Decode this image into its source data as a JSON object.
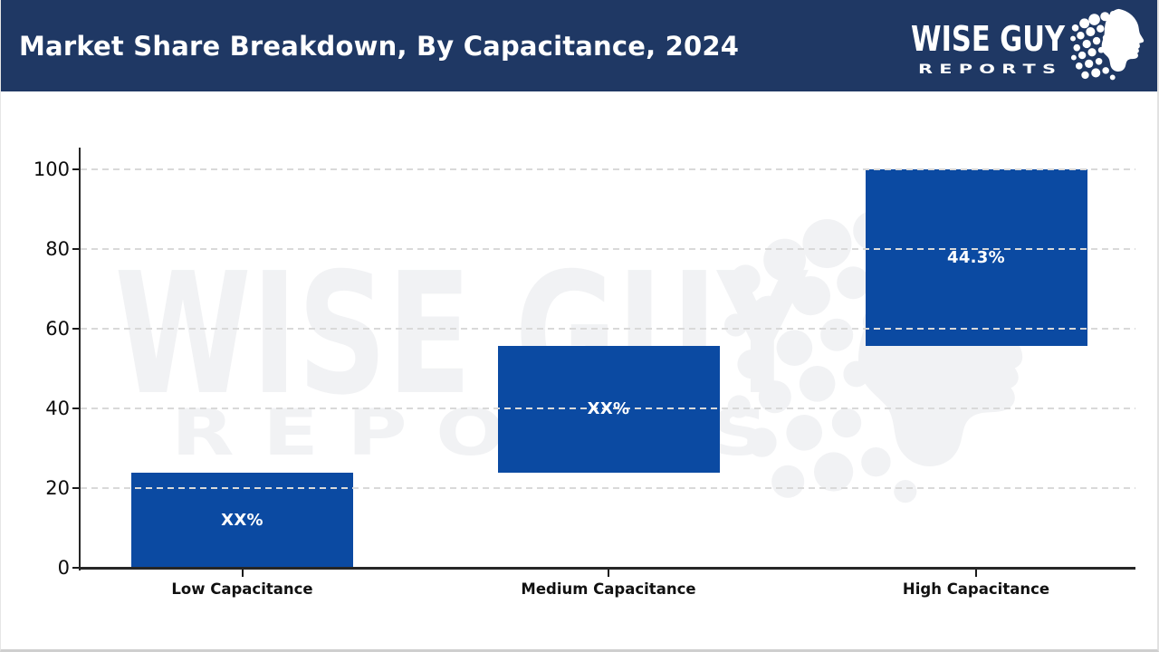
{
  "header": {
    "title": "Market Share Breakdown, By Capacitance, 2024",
    "logo": {
      "name": "WISE GUY",
      "sub": "R E P O R T S"
    }
  },
  "watermark": {
    "name": "WISE GUY",
    "sub": "R E P O R T S"
  },
  "chart_data": {
    "type": "bar",
    "variant": "waterfall-floating-bars",
    "title": "Market Share Breakdown, By Capacitance, 2024",
    "categories": [
      "Low Capacitance",
      "Medium Capacitance",
      "High Capacitance"
    ],
    "bars": [
      {
        "category": "Low Capacitance",
        "start": 0,
        "end": 23.9,
        "label": "XX%"
      },
      {
        "category": "Medium Capacitance",
        "start": 23.9,
        "end": 55.7,
        "label": "XX%"
      },
      {
        "category": "High Capacitance",
        "start": 55.7,
        "end": 100,
        "label": "44.3%"
      }
    ],
    "yticks": [
      0,
      20,
      40,
      60,
      80,
      100
    ],
    "ylim": [
      0,
      105
    ],
    "xlabel": "",
    "ylabel": "",
    "grid": "dashed-horizontal",
    "legend": "none",
    "bar_color": "#0b4aa2",
    "bar_label_color": "#ffffff"
  },
  "colors": {
    "header_bg": "#1f3864",
    "bar": "#0b4aa2",
    "axis": "#262626",
    "grid": "#d9d9d9",
    "watermark": "#f1f2f4"
  }
}
